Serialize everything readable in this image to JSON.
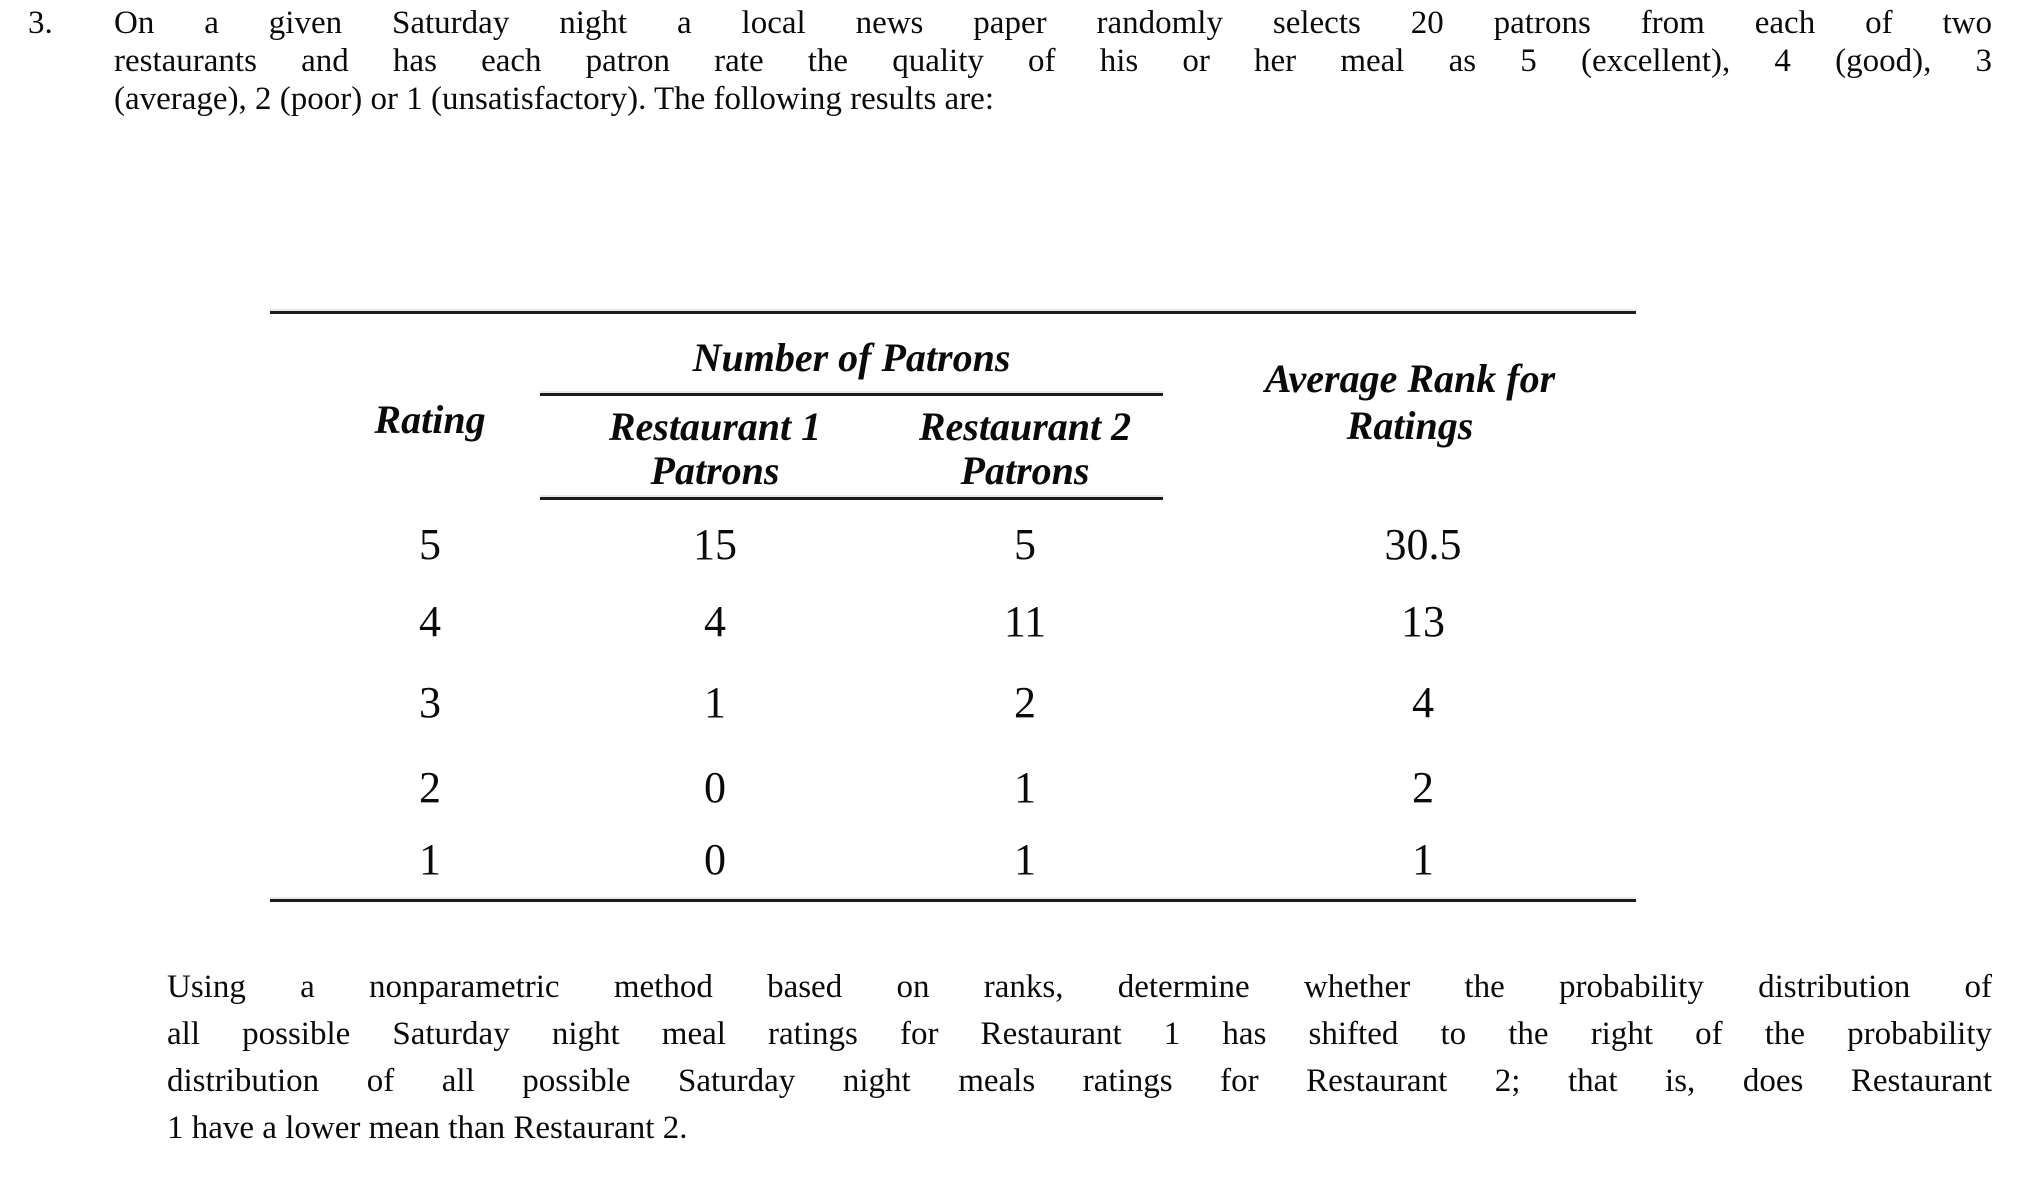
{
  "problem": {
    "number": "3.",
    "intro_lines": [
      "On a given Saturday night a local news paper randomly selects 20 patrons from each of two",
      "restaurants and has each patron rate the quality of his or her meal as 5 (excellent), 4 (good), 3",
      "(average), 2 (poor) or 1 (unsatisfactory).  The following results are:"
    ],
    "question_lines": [
      "Using a nonparametric method based on ranks, determine whether the probability distribution of",
      "all possible Saturday night meal ratings for Restaurant 1 has shifted to the right of the probability",
      "distribution of all possible Saturday night meals ratings for Restaurant 2;  that is, does Restaurant",
      "1 have a lower mean than Restaurant 2."
    ]
  },
  "table": {
    "rating_header": "Rating",
    "group_header": "Number of Patrons",
    "restaurant1_header": {
      "line1": "Restaurant 1",
      "line2": "Patrons"
    },
    "restaurant2_header": {
      "line1": "Restaurant 2",
      "line2": "Patrons"
    },
    "avg_rank_header": {
      "line1": "Average Rank for",
      "line2": "Ratings"
    },
    "rows": [
      {
        "rating": "5",
        "restaurant1": "15",
        "restaurant2": "5",
        "avg_rank": "30.5"
      },
      {
        "rating": "4",
        "restaurant1": "4",
        "restaurant2": "11",
        "avg_rank": "13"
      },
      {
        "rating": "3",
        "restaurant1": "1",
        "restaurant2": "2",
        "avg_rank": "4"
      },
      {
        "rating": "2",
        "restaurant1": "0",
        "restaurant2": "1",
        "avg_rank": "2"
      },
      {
        "rating": "1",
        "restaurant1": "0",
        "restaurant2": "1",
        "avg_rank": "1"
      }
    ]
  }
}
